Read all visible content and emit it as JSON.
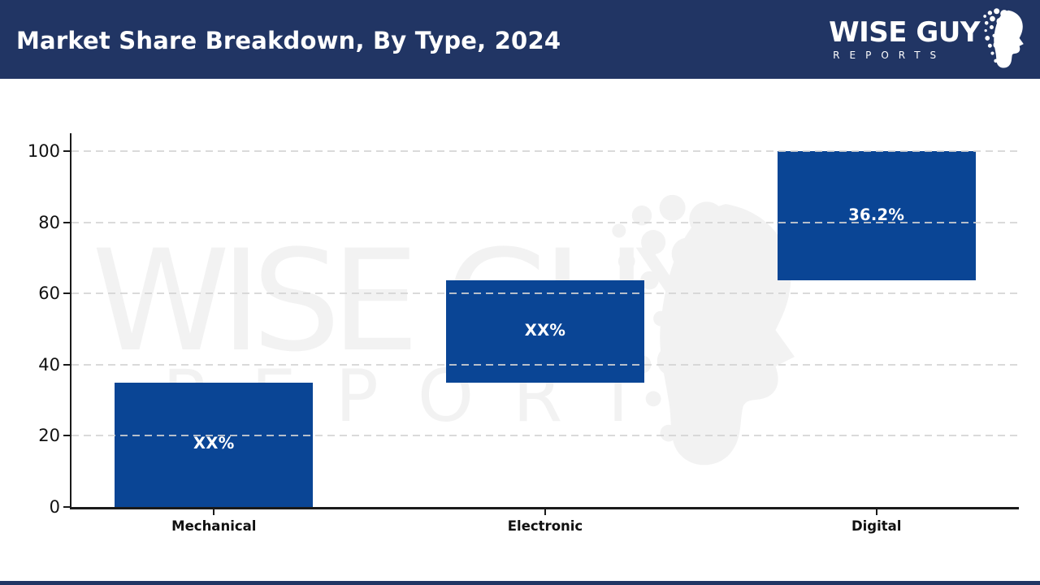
{
  "header": {
    "title": "Market Share Breakdown, By Type, 2024",
    "bg_color": "#213564",
    "logo": {
      "line1": "WISE GUY",
      "line2": "REPORTS"
    }
  },
  "watermark": {
    "line1": "WISE GUY",
    "line2": "REPORTS"
  },
  "chart_data": {
    "type": "bar",
    "subtype": "stacked-percentage-waterfall",
    "title": "Market Share Breakdown, By Type, 2024",
    "categories": [
      "Mechanical",
      "Electronic",
      "Digital"
    ],
    "segments": [
      {
        "category": "Mechanical",
        "start": 0,
        "end": 35,
        "value_label": "XX%"
      },
      {
        "category": "Electronic",
        "start": 35,
        "end": 63.8,
        "value_label": "XX%"
      },
      {
        "category": "Digital",
        "start": 63.8,
        "end": 100,
        "value_label": "36.2%"
      }
    ],
    "yticks": [
      0,
      20,
      40,
      60,
      80,
      100
    ],
    "ylim": [
      0,
      105
    ],
    "xlabel": "",
    "ylabel": "",
    "grid": "horizontal-dashed",
    "legend": "none",
    "colors": {
      "bar": "#0a4595",
      "bar_value_label": "#ffffff",
      "grid": "#d4d4d4",
      "axis": "#1a1a1a",
      "watermark": "#f2f2f2",
      "header_footer": "#213564"
    }
  }
}
